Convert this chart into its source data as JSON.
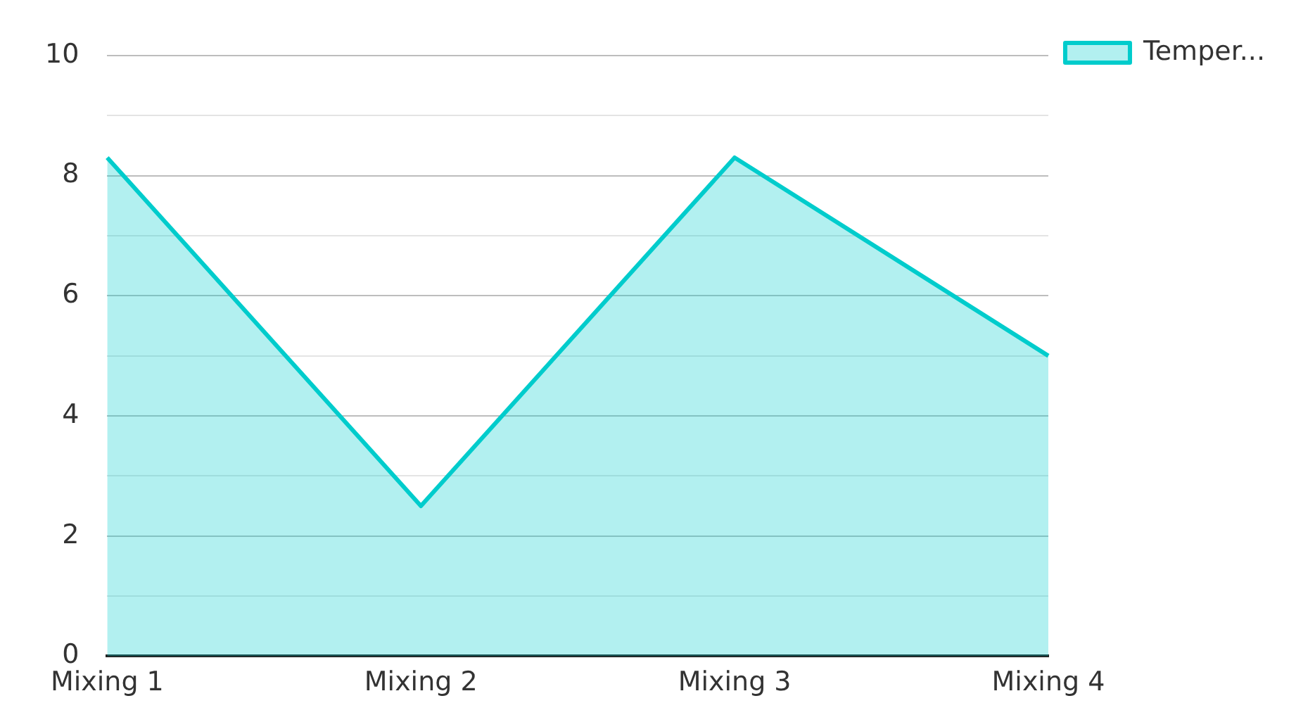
{
  "chart_data": {
    "type": "area",
    "categories": [
      "Mixing 1",
      "Mixing 2",
      "Mixing 3",
      "Mixing 4"
    ],
    "series": [
      {
        "name": "Temper...",
        "color": "#00cccc",
        "values": [
          8.3,
          2.5,
          8.3,
          5.0
        ]
      }
    ],
    "ylim": [
      0,
      10
    ],
    "yticks": [
      0,
      {
        "value": 1,
        "label": null
      },
      2,
      {
        "value": 3,
        "label": null
      },
      4,
      {
        "value": 5,
        "label": null
      },
      6,
      {
        "value": 7,
        "label": null
      },
      8,
      {
        "value": 9,
        "label": null
      },
      10
    ],
    "grid": "y",
    "legend": "top right"
  }
}
